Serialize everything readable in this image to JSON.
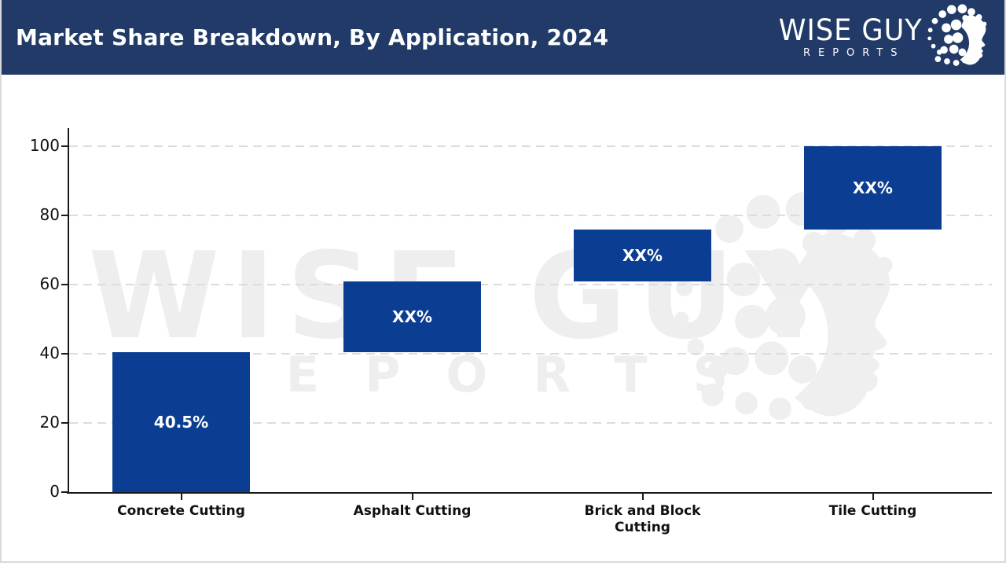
{
  "header": {
    "title": "Market Share Breakdown, By Application, 2024",
    "logo": {
      "line1": "WISE GUY",
      "line2": "REPORTS"
    }
  },
  "watermark": {
    "line1": "WISE GUY",
    "line2": "REPORTS"
  },
  "chart_data": {
    "type": "bar",
    "subtype": "waterfall",
    "title": "Market Share Breakdown, By Application, 2024",
    "categories": [
      "Concrete Cutting",
      "Asphalt Cutting",
      "Brick and Block Cutting",
      "Tile Cutting"
    ],
    "series": [
      {
        "name": "Market Share (%)",
        "segments": [
          {
            "category": "Concrete Cutting",
            "start": 0,
            "end": 40.5,
            "label": "40.5%"
          },
          {
            "category": "Asphalt Cutting",
            "start": 40.5,
            "end": 61,
            "label": "XX%"
          },
          {
            "category": "Brick and Block Cutting",
            "start": 61,
            "end": 76,
            "label": "XX%"
          },
          {
            "category": "Tile Cutting",
            "start": 76,
            "end": 100,
            "label": "XX%"
          }
        ]
      }
    ],
    "xlabel": "",
    "ylabel": "",
    "ylim": [
      0,
      100
    ],
    "yticks": [
      0,
      20,
      40,
      60,
      80,
      100
    ],
    "grid": "horizontal-dashed",
    "legend": "none",
    "colors": {
      "bar": "#0B3E92",
      "bar_label": "#FFFFFF",
      "axis": "#1A1A1A",
      "grid": "#DCDCDC",
      "header_bg": "#213A67",
      "header_text": "#FFFFFF",
      "watermark": "#EFEFEF"
    }
  }
}
